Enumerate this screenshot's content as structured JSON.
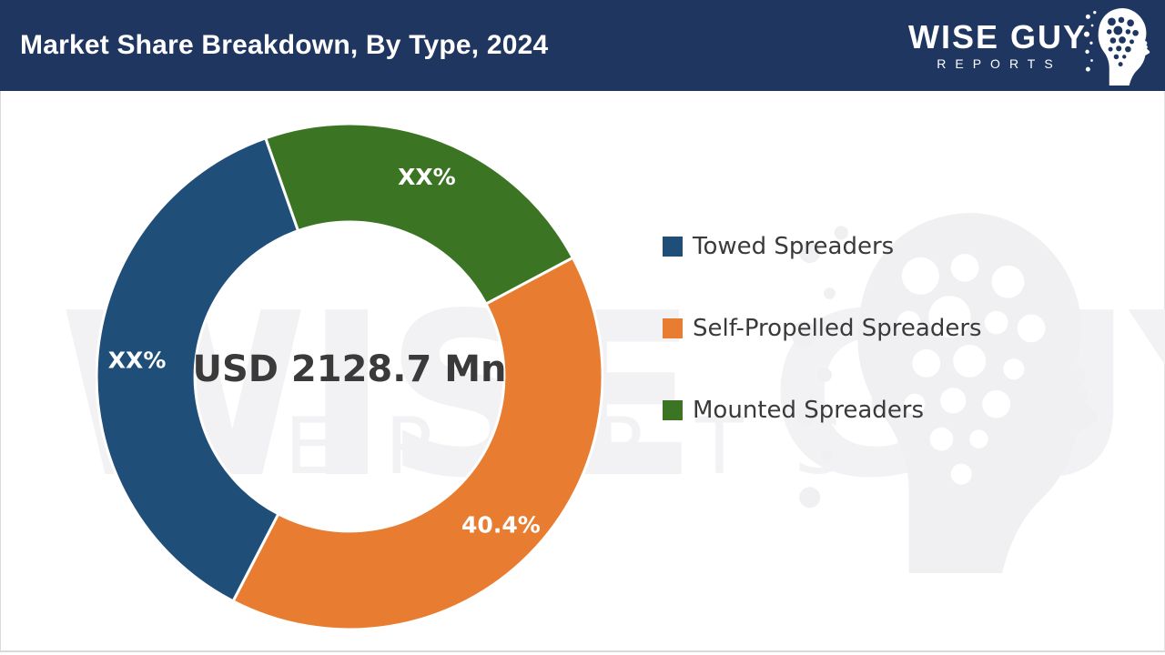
{
  "header": {
    "title": "Market Share Breakdown, By Type, 2024",
    "logo": {
      "line1": "WISE GUY",
      "line2": "REPORTS"
    }
  },
  "watermark": {
    "line1": "WISE GUY",
    "line2": "REPORTS"
  },
  "chart_data": {
    "type": "pie",
    "donut": true,
    "title": "Market Share Breakdown, By Type, 2024",
    "center_label": "USD 2128.7 Mn",
    "inner_radius_ratio": 0.61,
    "start_angle_deg": -109.4,
    "draw_order": [
      2,
      1,
      0
    ],
    "legend_position": "right",
    "slices": [
      {
        "label": "Towed Spreaders",
        "value_pct": 37.0,
        "display_label": "XX%",
        "color": "#1F4E79"
      },
      {
        "label": "Self-Propelled Spreaders",
        "value_pct": 40.4,
        "display_label": "40.4%",
        "color": "#E87D31"
      },
      {
        "label": "Mounted Spreaders",
        "value_pct": 22.6,
        "display_label": "XX%",
        "color": "#3B7423"
      }
    ]
  },
  "colors": {
    "header_bg": "#1F3660",
    "text_dark": "#3A3A3A",
    "watermark": "#F2F2F4",
    "border_gray": "#D9D9D9"
  }
}
